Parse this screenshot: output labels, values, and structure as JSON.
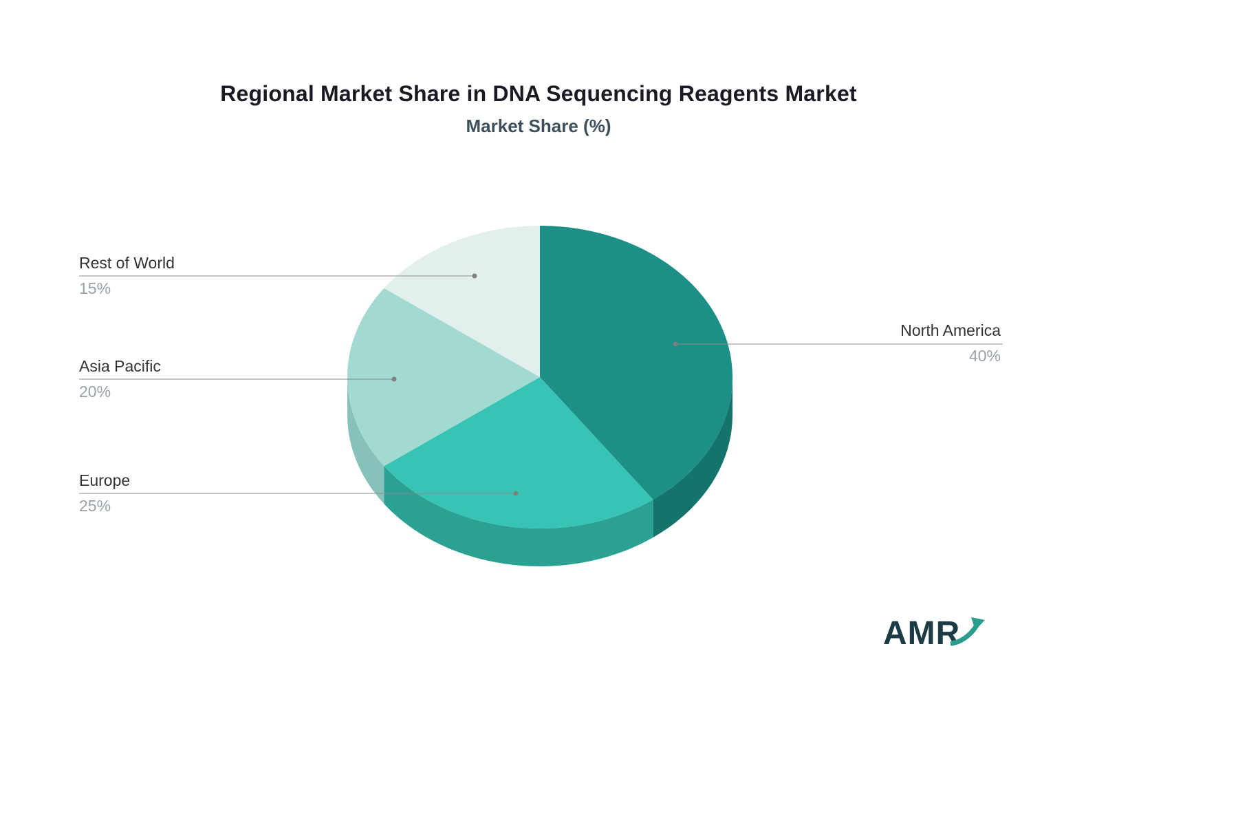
{
  "page": {
    "title": "Regional Market Share in DNA Sequencing Reagents Market",
    "subtitle": "Market Share (%)"
  },
  "logo": {
    "text": "AMR",
    "arrow_color": "#2a9d8f"
  },
  "chart_data": {
    "type": "pie",
    "style": "3d-pie",
    "title": "Regional Market Share in DNA Sequencing Reagents Market",
    "subtitle": "Market Share (%)",
    "unit": "%",
    "labels": [
      "North America",
      "Europe",
      "Asia Pacific",
      "Rest of World"
    ],
    "values": [
      40,
      25,
      20,
      15
    ],
    "display_values": [
      "40%",
      "25%",
      "20%",
      "15%"
    ],
    "colors": [
      "#1e8f86",
      "#38c4b4",
      "#a2dad2",
      "#e3efed"
    ],
    "side_colors": [
      "#14736b",
      "#2ba194",
      "#86c2ba",
      "#c8ddd9"
    ],
    "start_angle_deg": -90,
    "direction": "clockwise",
    "legend": "none",
    "label_layout": "outside-leader-lines"
  }
}
